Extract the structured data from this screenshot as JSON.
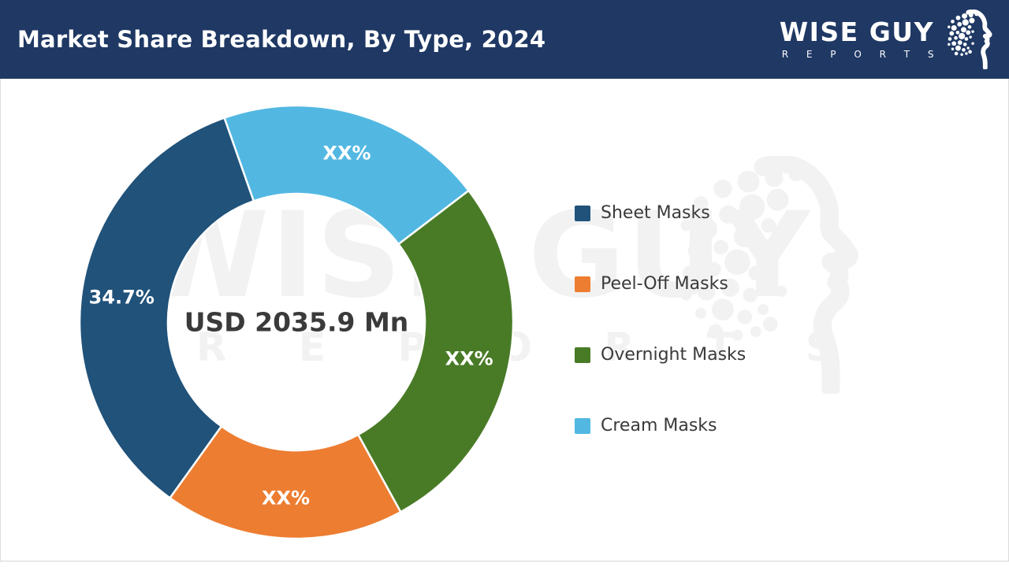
{
  "header": {
    "title": "Market Share Breakdown, By Type, 2024",
    "logo": {
      "line1": "WISE GUY",
      "line2": "R E P O R T S"
    }
  },
  "watermark": {
    "line1": "WISE GUY",
    "line2": "R E P O R T S"
  },
  "chart_data": {
    "type": "pie",
    "subtype": "donut",
    "title": "Market Share Breakdown, By Type, 2024",
    "center_label": "USD 2035.9 Mn",
    "legend_position": "right",
    "start_angle_deg": 109.4,
    "direction": "counterclockwise",
    "hole_radius_ratio": 0.59,
    "xx_slice_values_estimated_from_arc_angles": true,
    "slices": [
      {
        "name": "Sheet Masks",
        "label": "34.7%",
        "value_pct": 34.7,
        "color": "#20527A",
        "estimated": false
      },
      {
        "name": "Peel-Off Masks",
        "label": "XX%",
        "value_pct": 17.9,
        "color": "#ED7D31",
        "estimated": true
      },
      {
        "name": "Overnight Masks",
        "label": "XX%",
        "value_pct": 27.4,
        "color": "#497B27",
        "estimated": true
      },
      {
        "name": "Cream Masks",
        "label": "XX%",
        "value_pct": 20.0,
        "color": "#52B8E2",
        "estimated": true
      }
    ]
  },
  "colors": {
    "header_bg": "#1F3864",
    "page_bg": "#FFFFFF",
    "text_dark": "#3A3A3A",
    "slice_label": "#FFFFFF",
    "watermark": "#F2F2F2",
    "border": "#DCDCDC"
  }
}
